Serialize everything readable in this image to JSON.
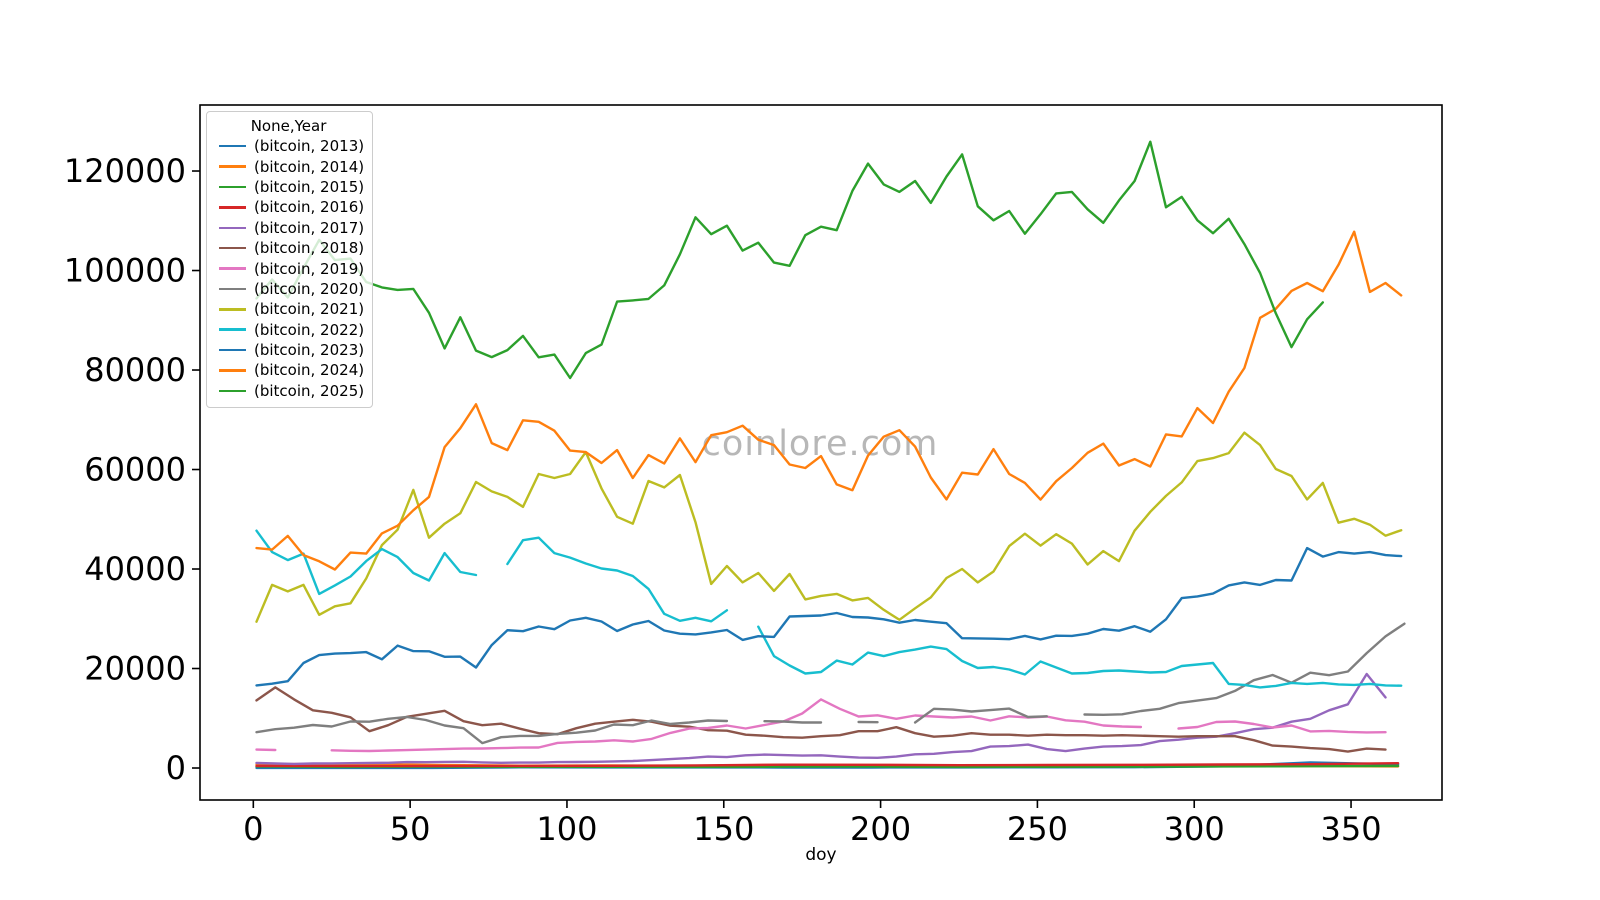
{
  "chart_data": {
    "type": "line",
    "title": "",
    "xlabel": "doy",
    "ylabel": "",
    "watermark": "coinlore.com",
    "grid": false,
    "legend": {
      "title": "None,Year",
      "position": "upper left"
    },
    "x_ticks": [
      0,
      50,
      100,
      150,
      200,
      250,
      300,
      350
    ],
    "y_ticks": [
      0,
      20000,
      40000,
      60000,
      80000,
      100000,
      120000
    ],
    "xlim": [
      -17,
      379
    ],
    "ylim": [
      -6430,
      133270
    ],
    "axis_color": "#000000",
    "series": [
      {
        "name": "(bitcoin, 2013)",
        "year": 2013,
        "color": "#1f77b4",
        "x0": 1,
        "dx": 28,
        "values": [
          13,
          21,
          31,
          135,
          117,
          128,
          97,
          104,
          121,
          133,
          155,
          340,
          1100,
          745
        ]
      },
      {
        "name": "(bitcoin, 2014)",
        "year": 2014,
        "color": "#ff7f0e",
        "x0": 1,
        "dx": 28,
        "values": [
          770,
          815,
          620,
          455,
          500,
          445,
          655,
          585,
          505,
          475,
          390,
          355,
          375,
          320
        ]
      },
      {
        "name": "(bitcoin, 2015)",
        "year": 2015,
        "color": "#2ca02c",
        "x0": 1,
        "dx": 28,
        "values": [
          315,
          225,
          255,
          245,
          235,
          230,
          262,
          282,
          230,
          237,
          268,
          330,
          362,
          430
        ]
      },
      {
        "name": "(bitcoin, 2016)",
        "year": 2016,
        "color": "#d62728",
        "x0": 1,
        "dx": 28,
        "values": [
          434,
          375,
          412,
          420,
          450,
          532,
          670,
          655,
          575,
          610,
          640,
          712,
          772,
          960
        ]
      },
      {
        "name": "(bitcoin, 2017)",
        "year": 2017,
        "color": "#9467bd",
        "x0": 1,
        "dx": 6,
        "values": [
          1000,
          900,
          830,
          900,
          920,
          970,
          1010,
          1050,
          1180,
          1160,
          1230,
          1250,
          1120,
          1040,
          1080,
          1090,
          1180,
          1210,
          1250,
          1330,
          1400,
          1600,
          1800,
          2000,
          2300,
          2200,
          2550,
          2700,
          2600,
          2500,
          2550,
          2300,
          2100,
          2050,
          2300,
          2750,
          2850,
          3200,
          3400,
          4300,
          4400,
          4700,
          3800,
          3400,
          3900,
          4300,
          4400,
          4600,
          5400,
          5700,
          6100,
          6300,
          7000,
          7800,
          8100,
          9300,
          9900,
          11600,
          12800,
          18900,
          14200
        ]
      },
      {
        "name": "(bitcoin, 2018)",
        "year": 2018,
        "color": "#8c564b",
        "x0": 1,
        "dx": 6,
        "values": [
          13600,
          16200,
          13800,
          11600,
          11100,
          10200,
          7400,
          8600,
          10300,
          10900,
          11500,
          9400,
          8600,
          8900,
          7900,
          7000,
          6800,
          8000,
          8900,
          9300,
          9700,
          9300,
          8500,
          8300,
          7600,
          7500,
          6700,
          6500,
          6200,
          6100,
          6400,
          6600,
          7400,
          7400,
          8200,
          7000,
          6300,
          6500,
          7000,
          6700,
          6700,
          6500,
          6700,
          6600,
          6600,
          6500,
          6600,
          6500,
          6400,
          6300,
          6400,
          6400,
          6400,
          5600,
          4500,
          4300,
          4000,
          3800,
          3300,
          3900,
          3700
        ]
      },
      {
        "name": "(bitcoin, 2019)",
        "year": 2019,
        "color": "#e377c2",
        "x0": 1,
        "dx": 6,
        "values": [
          3700,
          3620,
          null,
          null,
          3560,
          3460,
          3410,
          3510,
          3610,
          3710,
          3810,
          3910,
          3920,
          4010,
          4110,
          4120,
          5050,
          5250,
          5320,
          5580,
          5330,
          5850,
          7050,
          7920,
          8050,
          8550,
          7950,
          8650,
          9350,
          10950,
          13800,
          11900,
          10350,
          10600,
          9900,
          10550,
          10350,
          10150,
          10350,
          9550,
          10400,
          10150,
          10350,
          9600,
          9300,
          8550,
          8350,
          8250,
          null,
          7950,
          8250,
          9250,
          9350,
          8850,
          8150,
          8550,
          7350,
          7450,
          7250,
          7150,
          7200
        ]
      },
      {
        "name": "(bitcoin, 2020)",
        "year": 2020,
        "color": "#7f7f7f",
        "x0": 1,
        "dx": 6,
        "values": [
          7200,
          7800,
          8100,
          8650,
          8350,
          9350,
          9300,
          9900,
          10250,
          9650,
          8550,
          8000,
          5000,
          6200,
          6450,
          6450,
          6850,
          7100,
          7550,
          8750,
          8600,
          9550,
          8850,
          9150,
          9550,
          9450,
          null,
          9400,
          9350,
          9150,
          9150,
          null,
          9250,
          9200,
          null,
          9150,
          11900,
          11750,
          11350,
          11650,
          11950,
          10250,
          10400,
          null,
          10750,
          10700,
          10800,
          11450,
          11900,
          13050,
          13550,
          14050,
          15500,
          17650,
          18700,
          17150,
          19150,
          18650,
          19400,
          23100,
          26450,
          29000
        ]
      },
      {
        "name": "(bitcoin, 2021)",
        "year": 2021,
        "color": "#bcbd22",
        "x0": 1,
        "dx": 5,
        "values": [
          29400,
          36800,
          35500,
          36800,
          30800,
          32500,
          33100,
          38100,
          44800,
          47900,
          55900,
          46300,
          49100,
          51200,
          57500,
          55600,
          54500,
          52500,
          59100,
          58300,
          59100,
          63500,
          56200,
          50500,
          49100,
          57700,
          56400,
          58900,
          49400,
          37000,
          40600,
          37300,
          39200,
          35600,
          39000,
          33900,
          34600,
          35000,
          33700,
          34200,
          31800,
          29800,
          32100,
          34300,
          38200,
          40000,
          37300,
          39500,
          44600,
          47100,
          44700,
          47000,
          45100,
          40900,
          43600,
          41600,
          47700,
          51500,
          54700,
          57400,
          61700,
          62300,
          63300,
          67400,
          64900,
          60100,
          58700,
          54000,
          57300,
          49300,
          50100,
          48900,
          46700,
          47800
        ]
      },
      {
        "name": "(bitcoin, 2022)",
        "year": 2022,
        "color": "#17becf",
        "x0": 1,
        "dx": 5,
        "values": [
          47700,
          43400,
          41800,
          43100,
          35000,
          36700,
          38500,
          41600,
          44000,
          42400,
          39200,
          37700,
          43200,
          39400,
          38800,
          null,
          41000,
          45800,
          46300,
          43200,
          42300,
          41100,
          40100,
          39700,
          38600,
          36000,
          31000,
          29600,
          30200,
          29500,
          31700,
          null,
          28400,
          22500,
          20600,
          19000,
          19300,
          21600,
          20800,
          23200,
          22500,
          23300,
          23800,
          24400,
          23900,
          21500,
          20100,
          20300,
          19800,
          18800,
          21400,
          20200,
          19000,
          19100,
          19500,
          19600,
          19400,
          19200,
          19300,
          20500,
          20800,
          21100,
          16900,
          16700,
          16200,
          16500,
          17100,
          16900,
          17100,
          16800,
          16700,
          16900,
          16600,
          16550
        ]
      },
      {
        "name": "(bitcoin, 2023)",
        "year": 2023,
        "color": "#1f77b4",
        "x0": 1,
        "dx": 5,
        "values": [
          16600,
          16950,
          17450,
          21100,
          22700,
          23000,
          23100,
          23300,
          21850,
          24600,
          23500,
          23450,
          22350,
          22400,
          20200,
          24700,
          27700,
          27500,
          28450,
          27900,
          29650,
          30200,
          29450,
          27550,
          28850,
          29550,
          27650,
          27000,
          26850,
          27250,
          27750,
          25750,
          26500,
          26350,
          30450,
          30550,
          30650,
          31150,
          30350,
          30250,
          29900,
          29200,
          29750,
          29400,
          29100,
          26100,
          26050,
          26000,
          25900,
          26550,
          25850,
          26600,
          26550,
          27000,
          27950,
          27600,
          28500,
          27400,
          29900,
          34150,
          34500,
          35050,
          36700,
          37300,
          36800,
          37800,
          37700,
          44200,
          42500,
          43400,
          43100,
          43400,
          42800,
          42600
        ]
      },
      {
        "name": "(bitcoin, 2024)",
        "year": 2024,
        "color": "#ff7f0e",
        "x0": 1,
        "dx": 5,
        "values": [
          44200,
          43900,
          46650,
          42800,
          41550,
          39900,
          43300,
          43100,
          47150,
          48700,
          51800,
          54500,
          64500,
          68300,
          73100,
          65300,
          63900,
          69900,
          69600,
          67800,
          63800,
          63500,
          61300,
          63900,
          58300,
          62900,
          61200,
          66250,
          61500,
          66900,
          67500,
          68800,
          66000,
          64900,
          61000,
          60300,
          62700,
          57000,
          55850,
          62800,
          66600,
          67900,
          64600,
          58400,
          53990,
          59350,
          59000,
          64100,
          59100,
          57300,
          53950,
          57650,
          60300,
          63350,
          65200,
          60800,
          62100,
          60600,
          67050,
          66650,
          72350,
          69350,
          75650,
          80400,
          90500,
          92300,
          95900,
          97500,
          95850,
          101150,
          107800,
          95700,
          97500,
          95000
        ]
      },
      {
        "name": "(bitcoin, 2025)",
        "year": 2025,
        "color": "#2ca02c",
        "x0": 1,
        "dx": 5,
        "values": [
          94400,
          98200,
          94600,
          100500,
          106150,
          102100,
          102400,
          97700,
          96600,
          96100,
          96300,
          91500,
          84350,
          90600,
          83900,
          82600,
          84000,
          86850,
          82550,
          83100,
          78400,
          83400,
          85100,
          93750,
          94000,
          94300,
          97000,
          103250,
          110700,
          107300,
          109000,
          104000,
          105600,
          101600,
          100950,
          107100,
          108800,
          108100,
          116000,
          121500,
          117300,
          115800,
          118000,
          113600,
          118900,
          123350,
          112900,
          110100,
          111970,
          107400,
          111300,
          115500,
          115800,
          112300,
          109600,
          114100,
          118000,
          125900,
          112700,
          114800,
          110100,
          107500,
          110400,
          105300,
          99500,
          91400,
          84600,
          90200,
          93600
        ]
      }
    ]
  }
}
